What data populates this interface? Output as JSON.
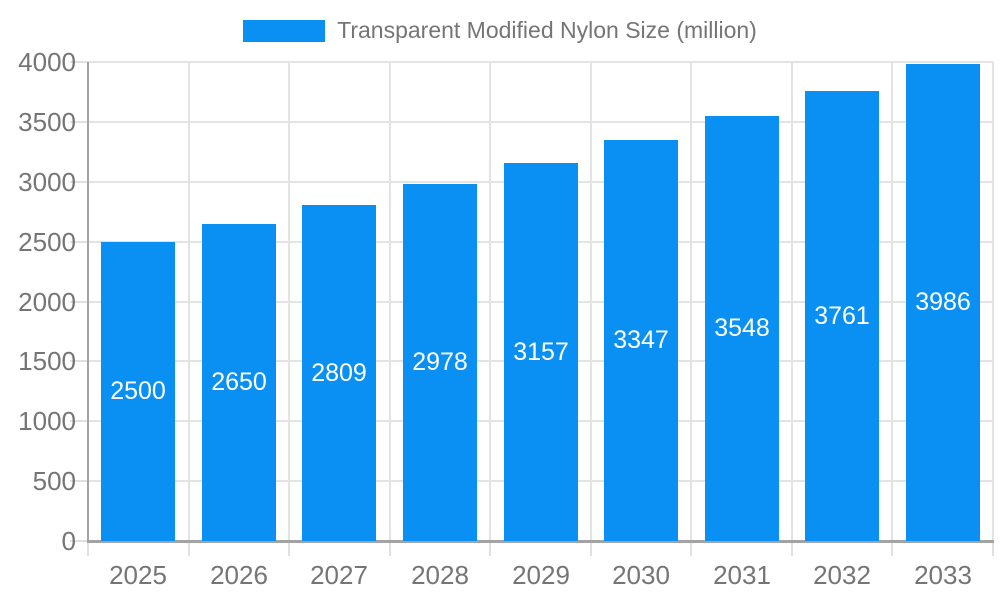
{
  "chart_data": {
    "type": "bar",
    "title": "Transparent Modified Nylon Size (million)",
    "categories": [
      "2025",
      "2026",
      "2027",
      "2028",
      "2029",
      "2030",
      "2031",
      "2032",
      "2033"
    ],
    "values": [
      2500,
      2650,
      2809,
      2978,
      3157,
      3347,
      3548,
      3761,
      3986
    ],
    "xlabel": "",
    "ylabel": "",
    "ylim": [
      0,
      4000
    ],
    "yticks": [
      0,
      500,
      1000,
      1500,
      2000,
      2500,
      3000,
      3500,
      4000
    ],
    "grid": true,
    "legend_position": "top-center",
    "bar_value_labels": "inside-center",
    "colors": {
      "bar": "#0a90f2",
      "grid": "#e3e3e3",
      "axis": "#a3a3a3",
      "tick": "#e0e0e0",
      "text": "#757575",
      "bar_label_text": "#ffffff",
      "background": "#ffffff"
    }
  },
  "legend": {
    "label": "Transparent Modified Nylon Size (million)"
  }
}
